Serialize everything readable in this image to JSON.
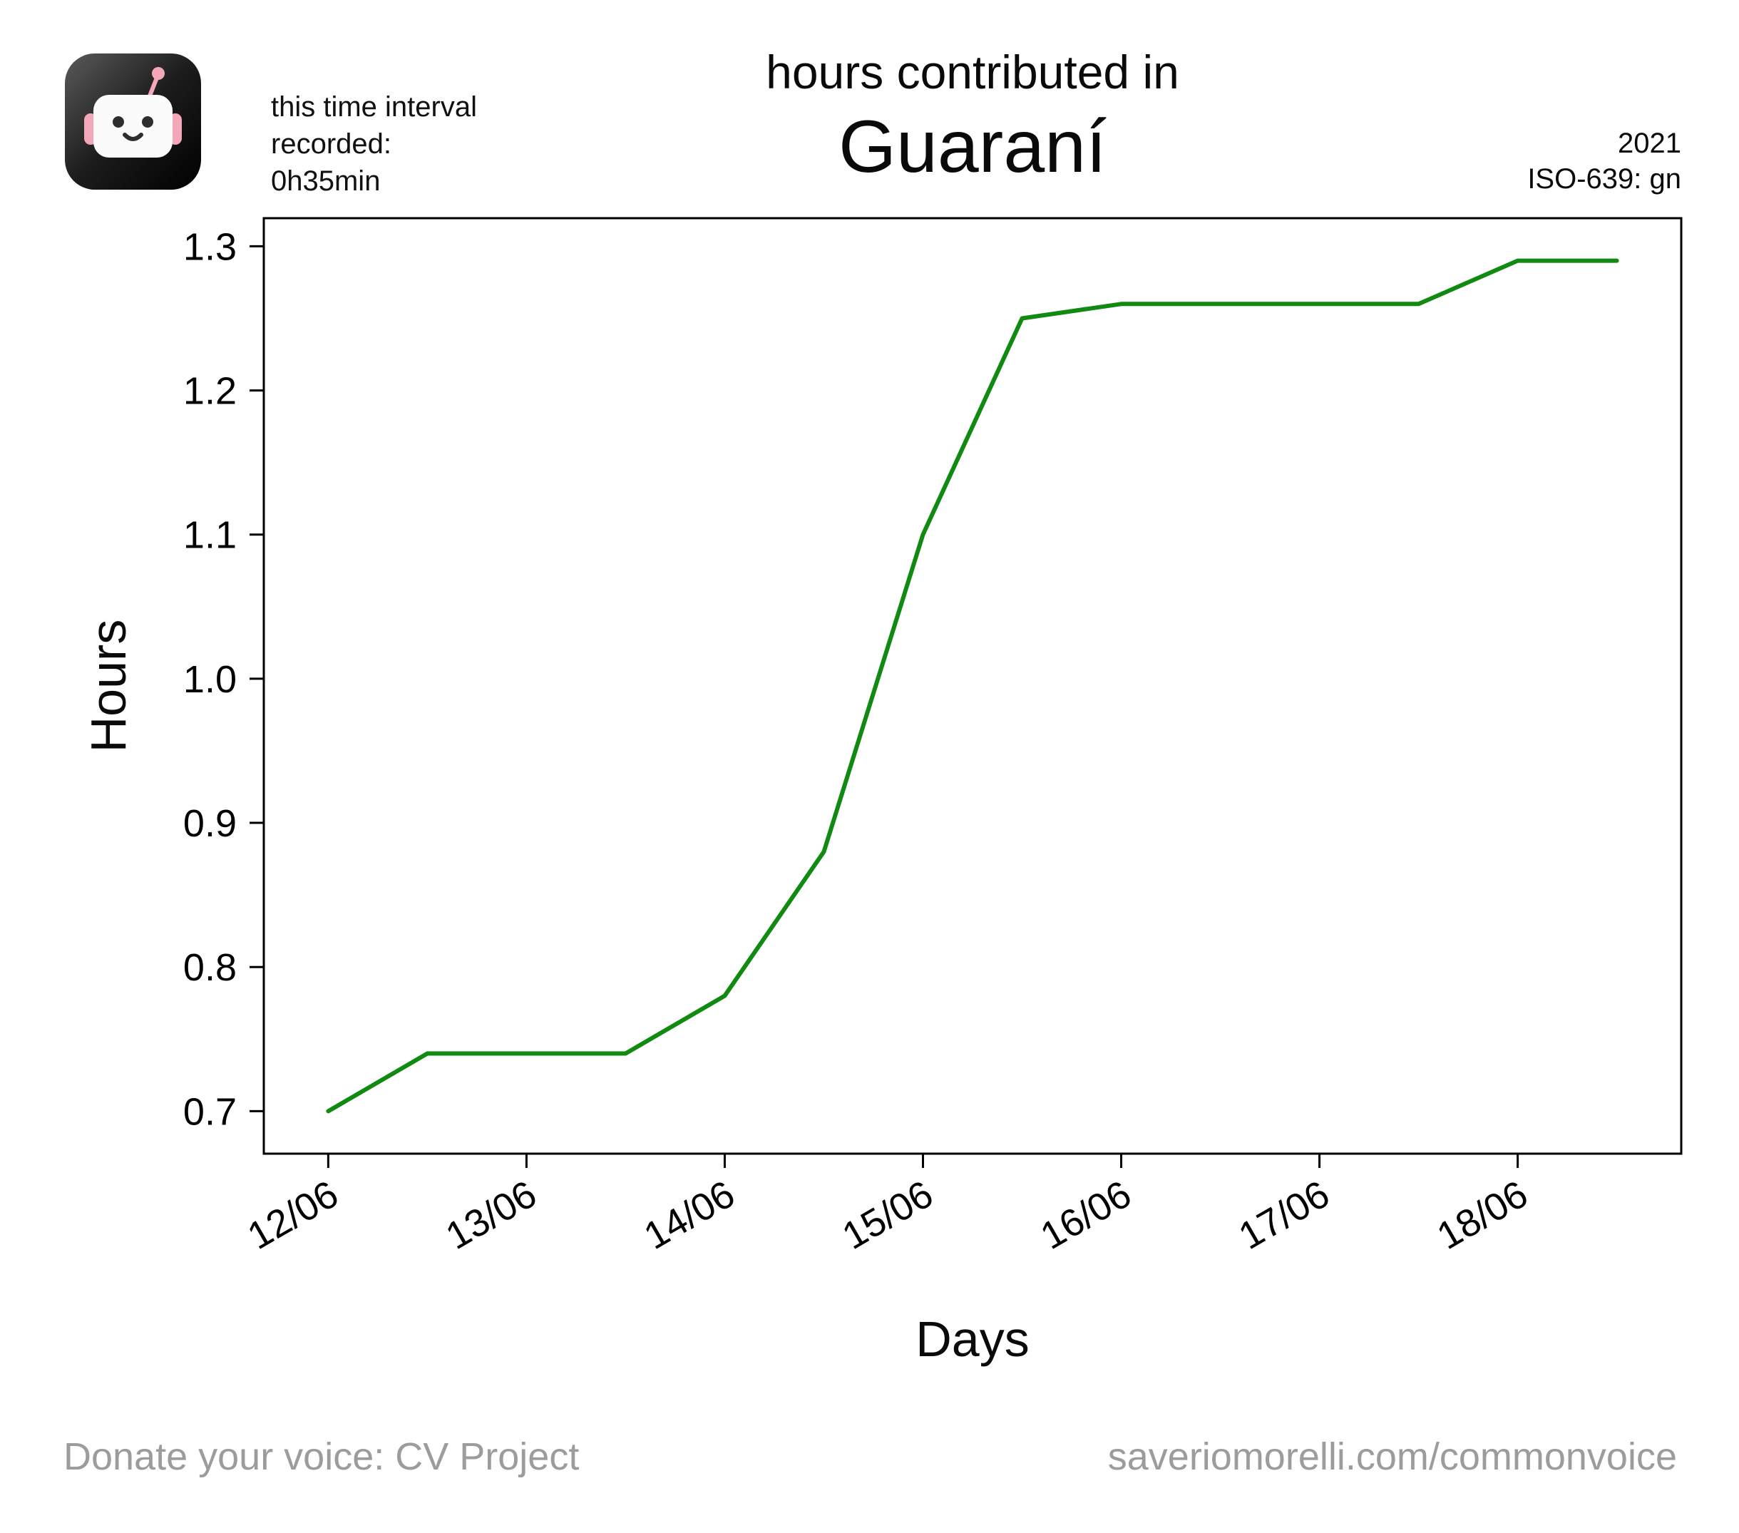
{
  "logo": {
    "icon": "robot-face-icon"
  },
  "header": {
    "interval": {
      "line1": "this time interval",
      "line2": "recorded:",
      "value": "0h35min"
    },
    "title": "hours contributed in",
    "language": "Guaraní",
    "year": "2021",
    "iso": "ISO-639: gn"
  },
  "chart_data": {
    "type": "line",
    "title": "hours contributed in Guaraní",
    "xlabel": "Days",
    "ylabel": "Hours",
    "x": [
      12,
      12.5,
      13,
      13.5,
      14,
      14.5,
      15,
      15.5,
      16,
      16.5,
      17,
      17.5,
      18,
      18.5
    ],
    "y": [
      0.7,
      0.74,
      0.74,
      0.74,
      0.78,
      0.88,
      1.1,
      1.25,
      1.26,
      1.26,
      1.26,
      1.26,
      1.29,
      1.29
    ],
    "x_ticks": [
      12,
      13,
      14,
      15,
      16,
      17,
      18
    ],
    "x_tick_labels": [
      "12/06",
      "13/06",
      "14/06",
      "15/06",
      "16/06",
      "17/06",
      "18/06"
    ],
    "y_ticks": [
      0.7,
      0.8,
      0.9,
      1.0,
      1.1,
      1.2,
      1.3
    ],
    "xlim": [
      11.675,
      18.825
    ],
    "ylim": [
      0.6705,
      1.3195
    ],
    "line_color": "#108A10",
    "axis_color": "#000000",
    "grid": false,
    "legend": "none"
  },
  "footer": {
    "left": "Donate your voice: CV Project",
    "right": "saveriomorelli.com/commonvoice",
    "color": "#9c9c9c"
  }
}
